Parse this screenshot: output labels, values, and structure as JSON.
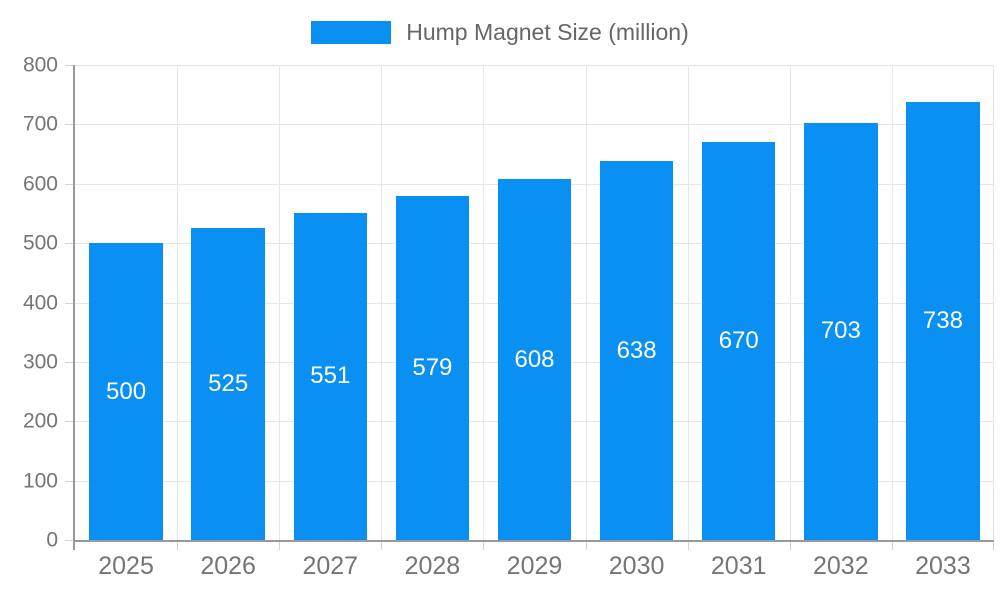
{
  "colors": {
    "bar": "#0a8ff2",
    "gridline": "#e6e6e6",
    "axis_line": "#999999",
    "tick_mark": "#d2d2d2",
    "axis_text": "#757575",
    "legend_text": "#666666",
    "bar_label_text": "#ffffff"
  },
  "chart_data": {
    "type": "bar",
    "series_name": "Hump Magnet Size (million)",
    "categories": [
      "2025",
      "2026",
      "2027",
      "2028",
      "2029",
      "2030",
      "2031",
      "2032",
      "2033"
    ],
    "values": [
      500,
      525,
      551,
      579,
      608,
      638,
      670,
      703,
      738
    ],
    "xlabel": "",
    "ylabel": "",
    "ylim": [
      0,
      800
    ],
    "ytick_step": 100,
    "ytick_labels": [
      "0",
      "100",
      "200",
      "300",
      "400",
      "500",
      "600",
      "700",
      "800"
    ],
    "grid": true,
    "legend_position": "top-center",
    "bar_value_labels_position": "centered-inside-bars"
  }
}
